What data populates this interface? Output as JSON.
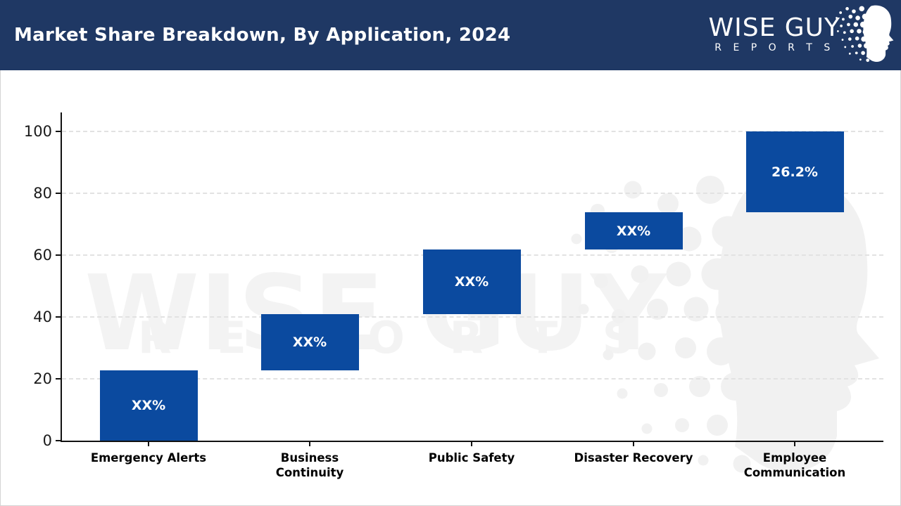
{
  "header": {
    "title": "Market Share Breakdown, By Application, 2024",
    "bg_color": "#1F3864",
    "logo": {
      "wordmark": "WISE GUY",
      "subtext": "R E P O R T S",
      "head_icon": "dotted-face-profile"
    }
  },
  "watermark": {
    "wordmark": "WISE GUY",
    "subtext": "R E P O R T S",
    "head_icon": "dotted-face-profile"
  },
  "chart_data": {
    "type": "bar",
    "variant": "waterfall",
    "title": "Market Share Breakdown, By Application, 2024",
    "unit": "%",
    "categories": [
      "Emergency Alerts",
      "Business Continuity",
      "Public Safety",
      "Disaster Recovery",
      "Employee Communication"
    ],
    "segments": [
      {
        "label": "Emergency Alerts",
        "start": 0,
        "end": 22.8,
        "value": 22.8,
        "value_label": "XX%"
      },
      {
        "label": "Business\nContinuity",
        "start": 22.8,
        "end": 41.0,
        "value": 18.2,
        "value_label": "XX%"
      },
      {
        "label": "Public Safety",
        "start": 41.0,
        "end": 61.8,
        "value": 20.8,
        "value_label": "XX%"
      },
      {
        "label": "Disaster Recovery",
        "start": 61.8,
        "end": 73.8,
        "value": 12.0,
        "value_label": "XX%"
      },
      {
        "label": "Employee\nCommunication",
        "start": 73.8,
        "end": 100,
        "value": 26.2,
        "value_label": "26.2%"
      }
    ],
    "ylim": [
      0,
      100
    ],
    "yticks": [
      0,
      20,
      40,
      60,
      80,
      100
    ],
    "xlabel": "",
    "ylabel": "",
    "grid": true,
    "gridline_style": "dashed",
    "legend": false,
    "bar_color": "#0B4A9F",
    "bar_label_color": "#FFFFFF",
    "axis_color": "#111111"
  }
}
